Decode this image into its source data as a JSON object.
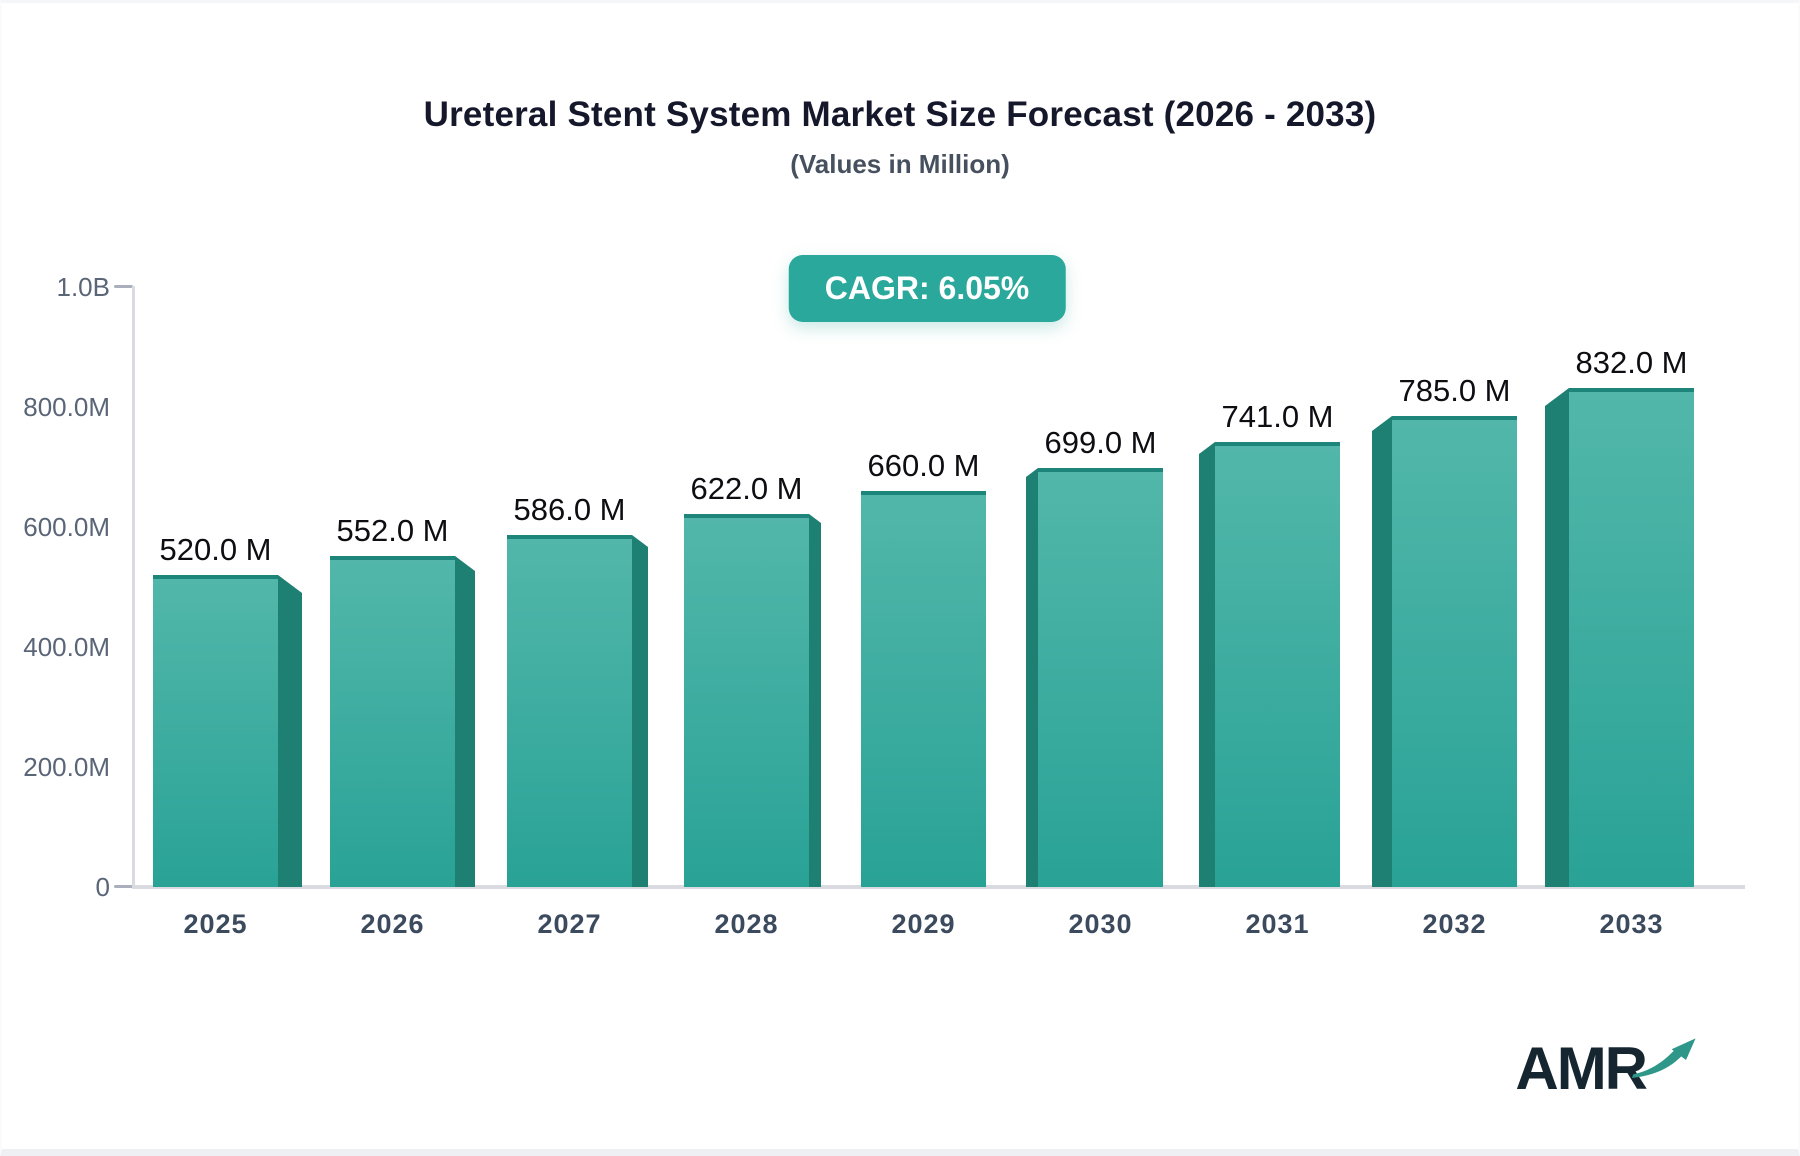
{
  "header": {
    "title": "Ureteral Stent System Market Size Forecast (2026 - 2033)",
    "subtitle": "(Values in Million)"
  },
  "badge": {
    "label": "CAGR: 6.05%"
  },
  "logo": {
    "text": "AMR",
    "icon": "trend-up-arrow-icon"
  },
  "colors": {
    "accent_teal": "#2aa89b",
    "bar_face_top": "#52b7aa",
    "bar_face_bottom": "#29a296",
    "bar_face_edge": "#1d857a",
    "bar_side_3d": "#1e7f73",
    "axis_line": "#d9dbe0",
    "value_label": "#0d0d12",
    "x_label": "#3c4a5e",
    "y_label": "#5a6577"
  },
  "chart_data": {
    "type": "bar",
    "title": "Ureteral Stent System Market Size Forecast (2026 - 2033)",
    "subtitle": "(Values in Million)",
    "cagr_percent": 6.05,
    "categories": [
      "2025",
      "2026",
      "2027",
      "2028",
      "2029",
      "2030",
      "2031",
      "2032",
      "2033"
    ],
    "values": [
      520.0,
      552.0,
      586.0,
      622.0,
      660.0,
      699.0,
      741.0,
      785.0,
      832.0
    ],
    "value_labels": [
      "520.0 M",
      "552.0 M",
      "586.0 M",
      "622.0 M",
      "660.0 M",
      "699.0 M",
      "741.0 M",
      "785.0 M",
      "832.0 M"
    ],
    "y_axis": {
      "tick_labels": [
        "1.0B",
        "800.0M",
        "600.0M",
        "400.0M",
        "200.0M",
        "0"
      ],
      "tick_values": [
        1000,
        800,
        600,
        400,
        200,
        0
      ],
      "range": [
        0,
        1000
      ]
    },
    "grid": false,
    "legend": "none",
    "bar_style": "3d-teal-gradient"
  }
}
